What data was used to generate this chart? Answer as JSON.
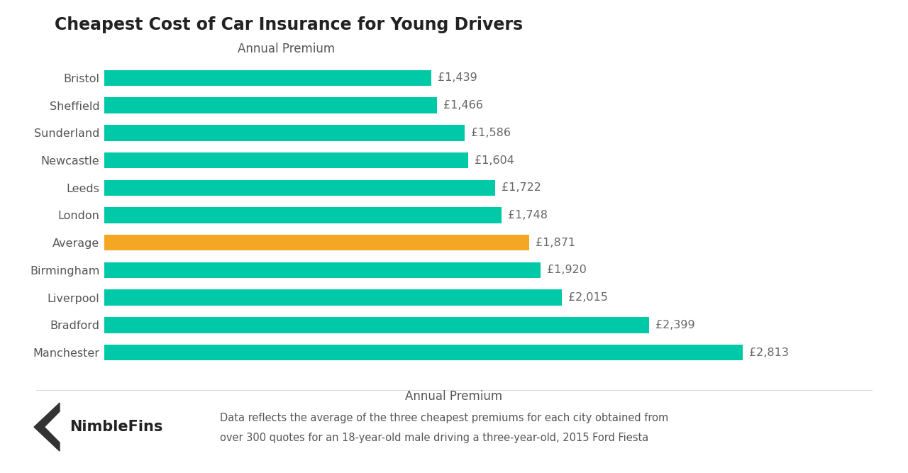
{
  "title": "Cheapest Cost of Car Insurance for Young Drivers",
  "categories": [
    "Bristol",
    "Sheffield",
    "Sunderland",
    "Newcastle",
    "Leeds",
    "London",
    "Average",
    "Birmingham",
    "Liverpool",
    "Bradford",
    "Manchester"
  ],
  "values": [
    1439,
    1466,
    1586,
    1604,
    1722,
    1748,
    1871,
    1920,
    2015,
    2399,
    2813
  ],
  "labels": [
    "£1,439",
    "£1,466",
    "£1,586",
    "£1,604",
    "£1,722",
    "£1,748",
    "£1,871",
    "£1,920",
    "£2,015",
    "£2,399",
    "£2,813"
  ],
  "bar_colors": [
    "#00C9A7",
    "#00C9A7",
    "#00C9A7",
    "#00C9A7",
    "#00C9A7",
    "#00C9A7",
    "#F5A623",
    "#00C9A7",
    "#00C9A7",
    "#00C9A7",
    "#00C9A7"
  ],
  "xlabel": "Annual Premium",
  "xlim": [
    0,
    3200
  ],
  "background_color": "#FFFFFF",
  "title_fontsize": 17,
  "label_fontsize": 11.5,
  "tick_fontsize": 11.5,
  "xlabel_fontsize": 12,
  "footer_text_1": "Data reflects the average of the three cheapest premiums for each city obtained from",
  "footer_text_2": "over 300 quotes for an 18-year-old male driving a three-year-old, 2015 Ford Fiesta",
  "brand_name": "NimbleFins",
  "bar_height": 0.58
}
